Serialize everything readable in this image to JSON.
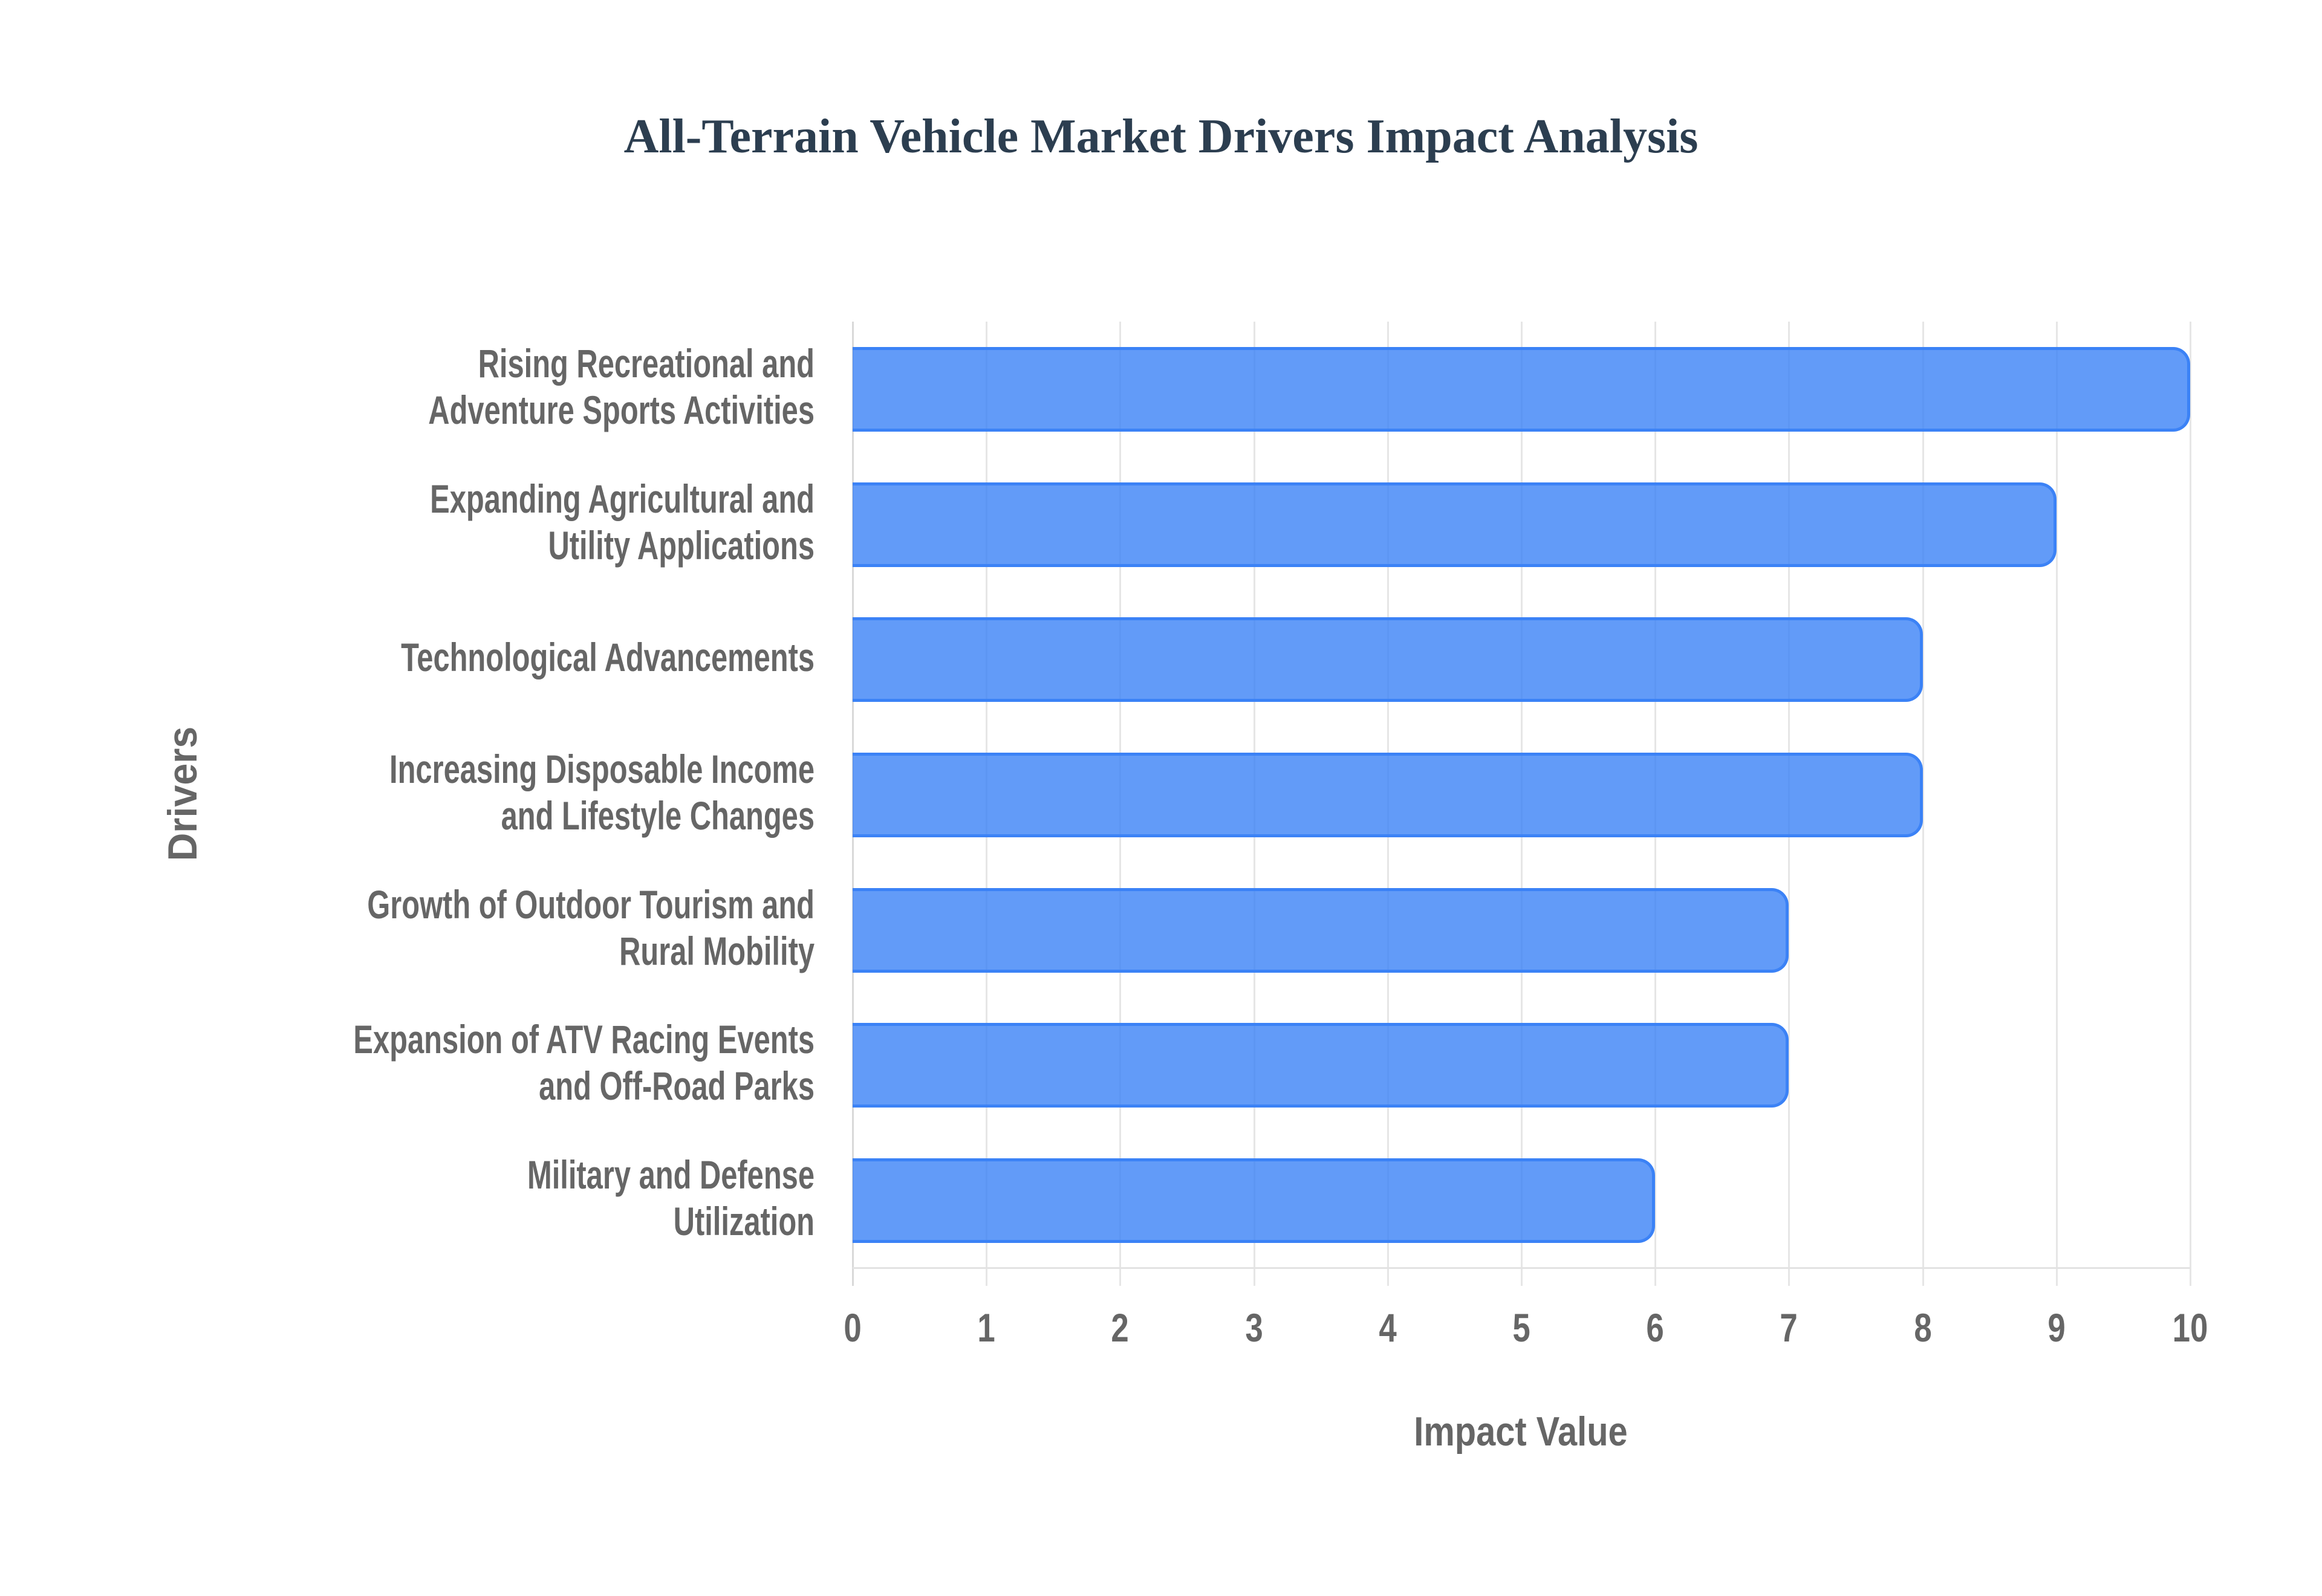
{
  "chart": {
    "title": "All-Terrain Vehicle Market Drivers Impact Analysis",
    "xlabel": "Impact Value",
    "ylabel": "Drivers",
    "x_ticks": [
      "0",
      "1",
      "2",
      "3",
      "4",
      "5",
      "6",
      "7",
      "8",
      "9",
      "10"
    ],
    "bar_fill": "#3B82F6CC",
    "bar_border": "#3B82F6",
    "gridline_color": "#E6E6E6",
    "text_color": "#666666",
    "title_color": "#2C3E50"
  },
  "chart_data": {
    "type": "bar",
    "orientation": "horizontal",
    "title": "All-Terrain Vehicle Market Drivers Impact Analysis",
    "xlabel": "Impact Value",
    "ylabel": "Drivers",
    "xlim": [
      0,
      10
    ],
    "grid": true,
    "legend": null,
    "categories": [
      "Rising Recreational and Adventure Sports Activities",
      "Expanding Agricultural and Utility Applications",
      "Technological Advancements",
      "Increasing Disposable Income and Lifestyle Changes",
      "Growth of Outdoor Tourism and Rural Mobility",
      "Expansion of ATV Racing Events and Off-Road Parks",
      "Military and Defense Utilization"
    ],
    "values": [
      10,
      9,
      8,
      8,
      7,
      7,
      6
    ]
  },
  "labels": [
    "Rising Recreational and\nAdventure Sports Activities",
    "Expanding Agricultural and\nUtility Applications",
    "Technological Advancements",
    "Increasing Disposable Income\nand Lifestyle Changes",
    "Growth of Outdoor Tourism and\nRural Mobility",
    "Expansion of ATV Racing Events\nand Off-Road Parks",
    "Military and Defense\nUtilization"
  ]
}
